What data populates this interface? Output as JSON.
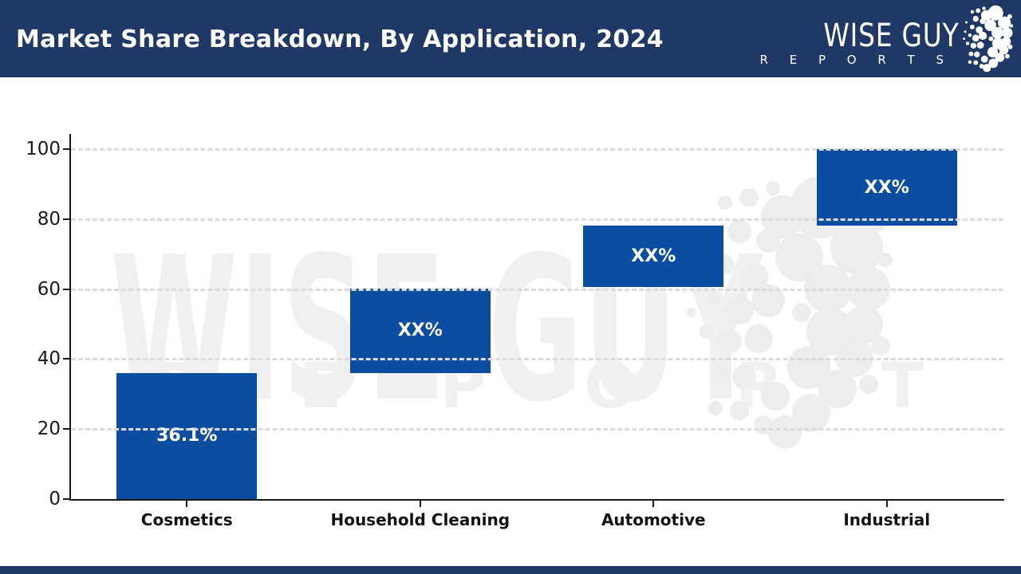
{
  "header": {
    "title": "Market Share Breakdown, By Application, 2024",
    "bg_color": "#1f3866",
    "logo": {
      "line1": "WISE GUY",
      "line2": "R E P O R T S"
    }
  },
  "watermark": {
    "line1": "WISE GUY",
    "line2": "R E P O R T S"
  },
  "chart_data": {
    "type": "bar",
    "subtype": "floating-waterfall",
    "title": "Market Share Breakdown, By Application, 2024",
    "xlabel": "",
    "ylabel": "",
    "categories": [
      "Cosmetics",
      "Household Cleaning",
      "Automotive",
      "Industrial"
    ],
    "bars": [
      {
        "category": "Cosmetics",
        "start": 0,
        "end": 36.1,
        "label": "36.1%"
      },
      {
        "category": "Household Cleaning",
        "start": 36.1,
        "end": 60.1,
        "label": "XX%"
      },
      {
        "category": "Automotive",
        "start": 60.5,
        "end": 78.1,
        "label": "XX%"
      },
      {
        "category": "Industrial",
        "start": 78.1,
        "end": 100,
        "label": "XX%"
      }
    ],
    "y_ticks": [
      0,
      20,
      40,
      60,
      80,
      100
    ],
    "ylim": [
      0,
      104
    ],
    "grid": "dashed-horizontal",
    "gridline_color": "#dcdcdc",
    "bar_color": "#0b4da1",
    "bar_label_color": "#ffffff",
    "axis_color": "#1a1a1a",
    "legend": "none"
  },
  "footer": {
    "bg_color": "#1f3866"
  }
}
